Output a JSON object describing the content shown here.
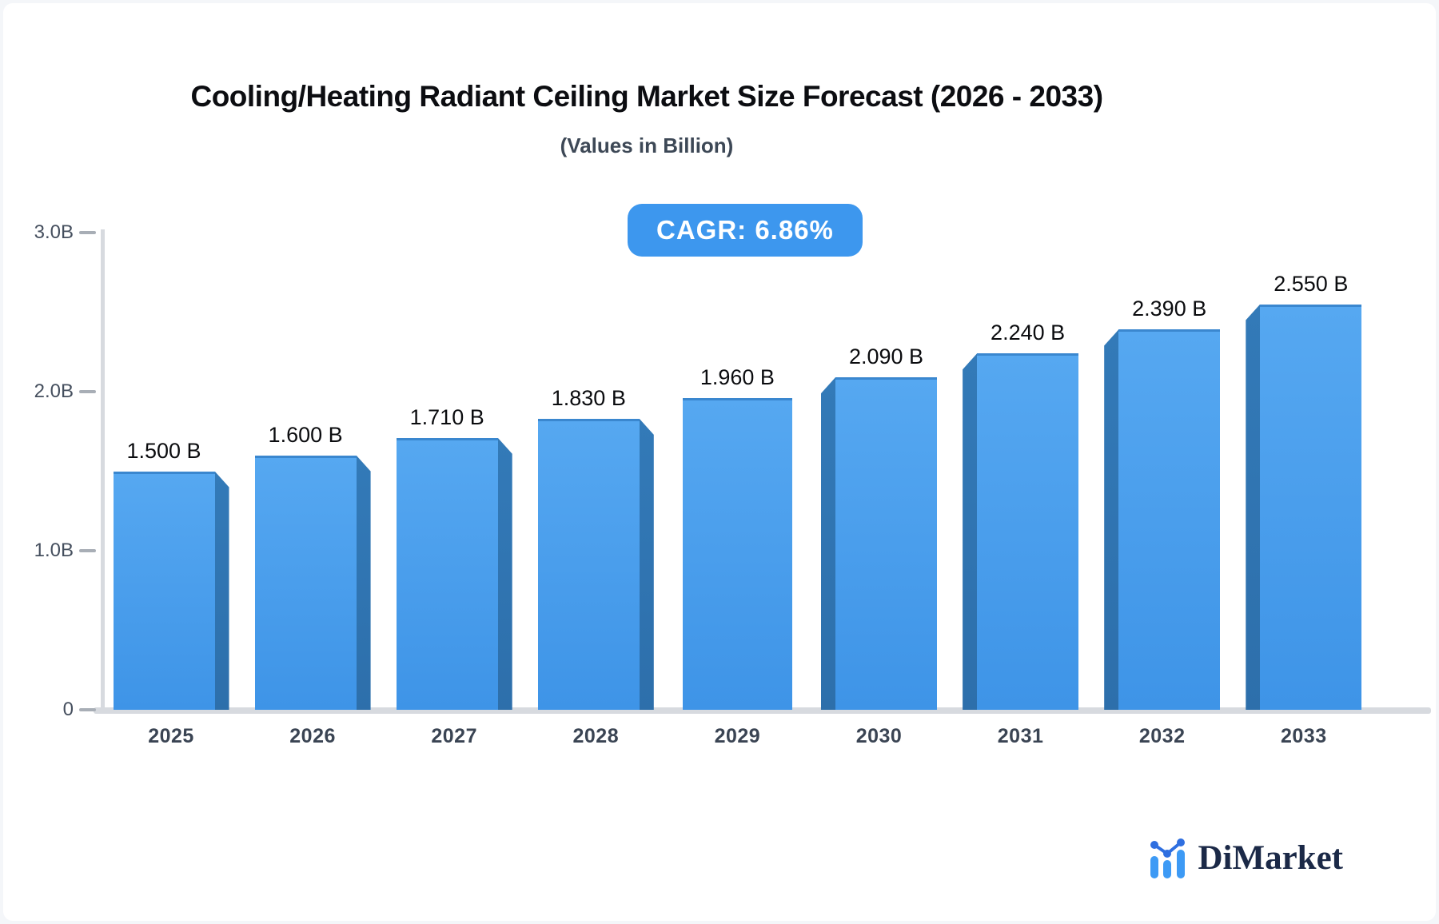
{
  "header": {
    "title": "Cooling/Heating Radiant Ceiling Market Size Forecast (2026 - 2033)",
    "subtitle": "(Values in Billion)",
    "badge": "CAGR: 6.86%"
  },
  "chart_data": {
    "type": "bar",
    "title": "Cooling/Heating Radiant Ceiling Market Size Forecast (2026 - 2033)",
    "subtitle": "(Values in Billion)",
    "categories": [
      "2025",
      "2026",
      "2027",
      "2028",
      "2029",
      "2030",
      "2031",
      "2032",
      "2033"
    ],
    "values": [
      1.5,
      1.6,
      1.71,
      1.83,
      1.96,
      2.09,
      2.24,
      2.39,
      2.55
    ],
    "value_labels": [
      "1.500 B",
      "1.600 B",
      "1.710 B",
      "1.830 B",
      "1.960 B",
      "2.090 B",
      "2.240 B",
      "2.390 B",
      "2.550 B"
    ],
    "unit": "Billion",
    "cagr": "6.86%",
    "xlabel": "",
    "ylabel": "",
    "ylim": [
      0,
      3
    ],
    "yticks": [
      {
        "value": 0,
        "label": "0"
      },
      {
        "value": 1,
        "label": "1.0B"
      },
      {
        "value": 2,
        "label": "2.0B"
      },
      {
        "value": 3,
        "label": "3.0B"
      }
    ],
    "grid": false,
    "legend": "none",
    "bar_style": "3d-perspective-center-vanishing"
  },
  "colors": {
    "bar_face_top": "#56a8f1",
    "bar_face_bottom": "#3e94e7",
    "bar_side": "#2d6fab",
    "bar_top_edge": "#3a87cf",
    "badge_bg": "#3d97ee",
    "badge_text": "#ffffff",
    "axis": "#d7dadf",
    "title_text": "#0c0d11",
    "logo_navy": "#1b2947",
    "logo_blue": "#3d9af5"
  },
  "logo": {
    "text": "DiMarket",
    "icon": "mini-bar-chart-icon"
  }
}
